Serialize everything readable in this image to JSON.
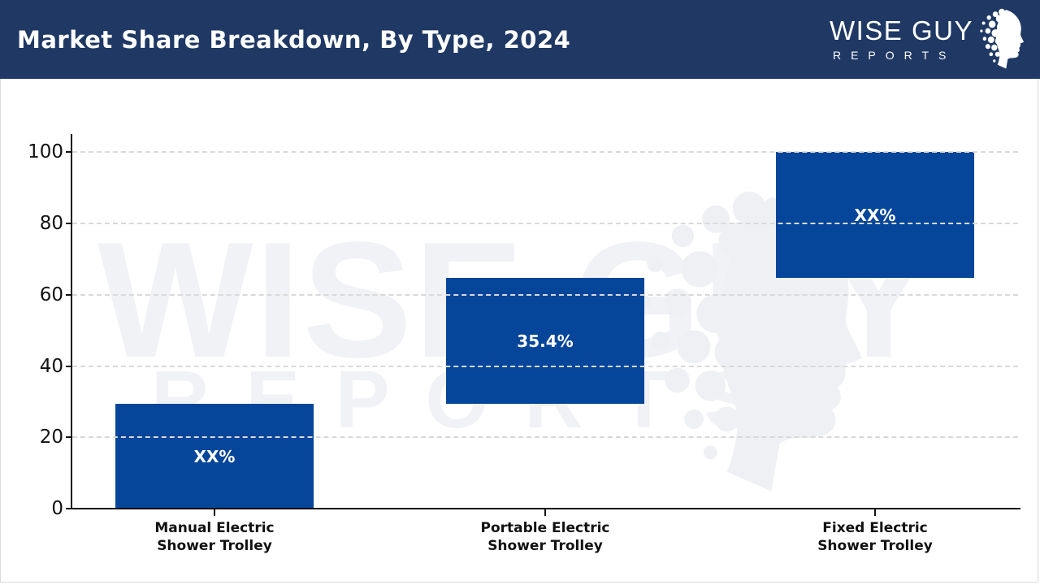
{
  "header": {
    "title": "Market Share Breakdown, By Type, 2024",
    "background": "#1f3864",
    "logo": {
      "wordmark": "WISE GUY",
      "subtext": "REPORTS"
    }
  },
  "watermark": {
    "wordmark": "WISE GUY",
    "subtext": "REPORTS"
  },
  "chart_data": {
    "type": "bar",
    "variant": "floating-range-bars",
    "title": "Market Share Breakdown, By Type, 2024",
    "categories": [
      {
        "line1": "Manual Electric",
        "line2": "Shower Trolley"
      },
      {
        "line1": "Portable Electric",
        "line2": "Shower Trolley"
      },
      {
        "line1": "Fixed Electric",
        "line2": "Shower Trolley"
      }
    ],
    "bars": [
      {
        "from": 0,
        "to": 29.3,
        "label": "XX%"
      },
      {
        "from": 29.3,
        "to": 64.7,
        "label": "35.4%"
      },
      {
        "from": 64.7,
        "to": 100,
        "label": "XX%"
      }
    ],
    "ylim": [
      0,
      100
    ],
    "yticks": [
      0,
      20,
      40,
      60,
      80,
      100
    ],
    "xlabel": "",
    "ylabel": "",
    "bar_color": "#05459a",
    "bar_label_color": "#ffffff",
    "grid": {
      "axis": "y",
      "style": "dashed",
      "color": "#d9d9d9",
      "on_top_of_bars": true
    },
    "legend": "none"
  }
}
